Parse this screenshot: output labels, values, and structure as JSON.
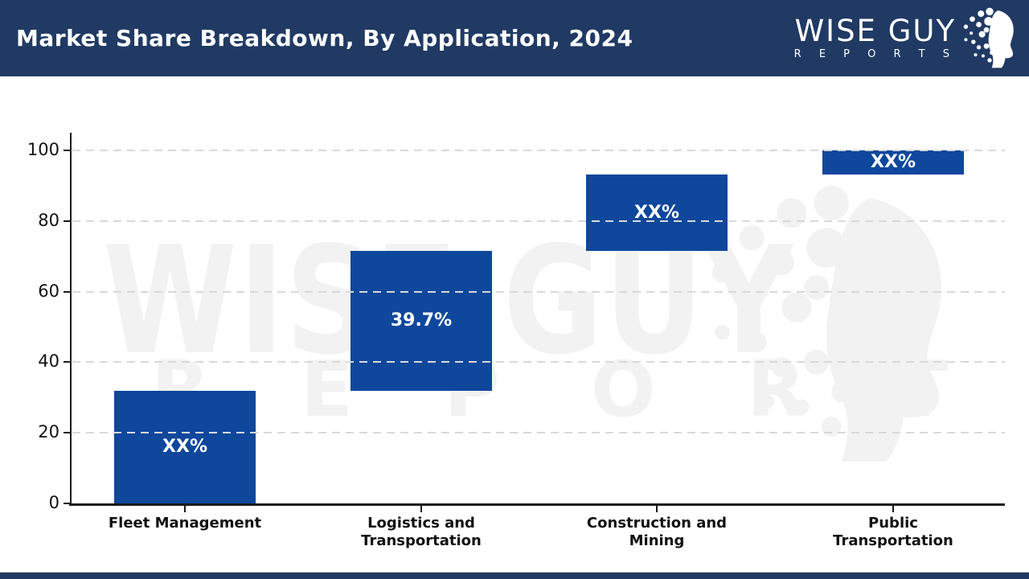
{
  "header": {
    "title": "Market Share Breakdown, By Application, 2024",
    "logo": {
      "name": "WISE GUY",
      "tagline": "R E P O R T S"
    }
  },
  "watermark": {
    "name": "WISE GUY",
    "tagline": "R E P O R T S"
  },
  "colors": {
    "header_bg": "#203a64",
    "footer_bar": "#203a64",
    "bar_fill": "#0e479c",
    "bar_label": "#ffffff",
    "axis": "#1a1a1a",
    "gridline": "#d9d9d9",
    "tick_label": "#111111",
    "watermark": "#f2f2f2"
  },
  "chart_data": {
    "type": "bar",
    "variant": "waterfall",
    "title": "Market Share Breakdown, By Application, 2024",
    "categories": [
      "Fleet Management",
      "Logistics and Transportation",
      "Construction and Mining",
      "Public Transportation"
    ],
    "category_label_lines": [
      [
        "Fleet Management"
      ],
      [
        "Logistics and",
        "Transportation"
      ],
      [
        "Construction and",
        "Mining"
      ],
      [
        "Public",
        "Transportation"
      ]
    ],
    "series": [
      {
        "name": "Market share (%)",
        "segments": [
          {
            "category": "Fleet Management",
            "start": 0,
            "end": 31.9,
            "value_label": "XX%"
          },
          {
            "category": "Logistics and Transportation",
            "start": 31.9,
            "end": 71.6,
            "value_label": "39.7%"
          },
          {
            "category": "Construction and Mining",
            "start": 71.6,
            "end": 93.2,
            "value_label": "XX%"
          },
          {
            "category": "Public Transportation",
            "start": 93.2,
            "end": 100,
            "value_label": "XX%"
          }
        ]
      }
    ],
    "xlabel": "",
    "ylabel": "",
    "ylim": [
      0,
      100
    ],
    "yticks": [
      0,
      20,
      40,
      60,
      80,
      100
    ],
    "grid": "horizontal-dashed",
    "legend": "none"
  }
}
